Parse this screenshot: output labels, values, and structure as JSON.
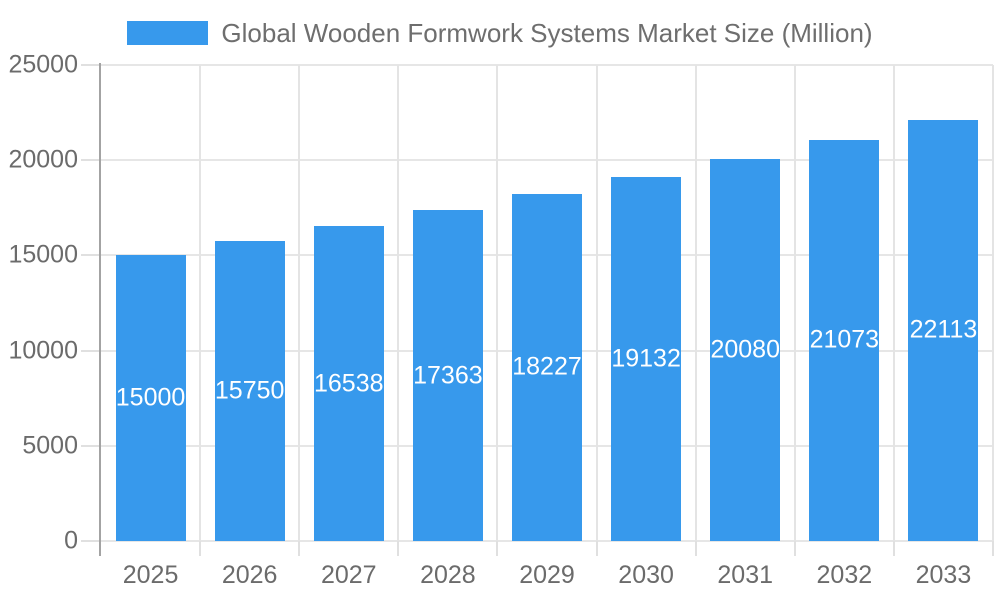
{
  "chart_data": {
    "type": "bar",
    "title": "Global Wooden Formwork Systems Market Size (Million)",
    "categories": [
      "2025",
      "2026",
      "2027",
      "2028",
      "2029",
      "2030",
      "2031",
      "2032",
      "2033"
    ],
    "values": [
      15000,
      15750,
      16538,
      17363,
      18227,
      19132,
      20080,
      21073,
      22113
    ],
    "xlabel": "",
    "ylabel": "",
    "ylim": [
      0,
      25000
    ],
    "yticks": [
      0,
      5000,
      10000,
      15000,
      20000,
      25000
    ],
    "grid": true,
    "legend_position": "top",
    "bar_color": "#3799EC",
    "value_label_color": "#ffffff",
    "axis_text_color": "#6b6b6b",
    "gridline_color": "#e6e6e6",
    "axis_line_color": "#a3a3a3"
  }
}
